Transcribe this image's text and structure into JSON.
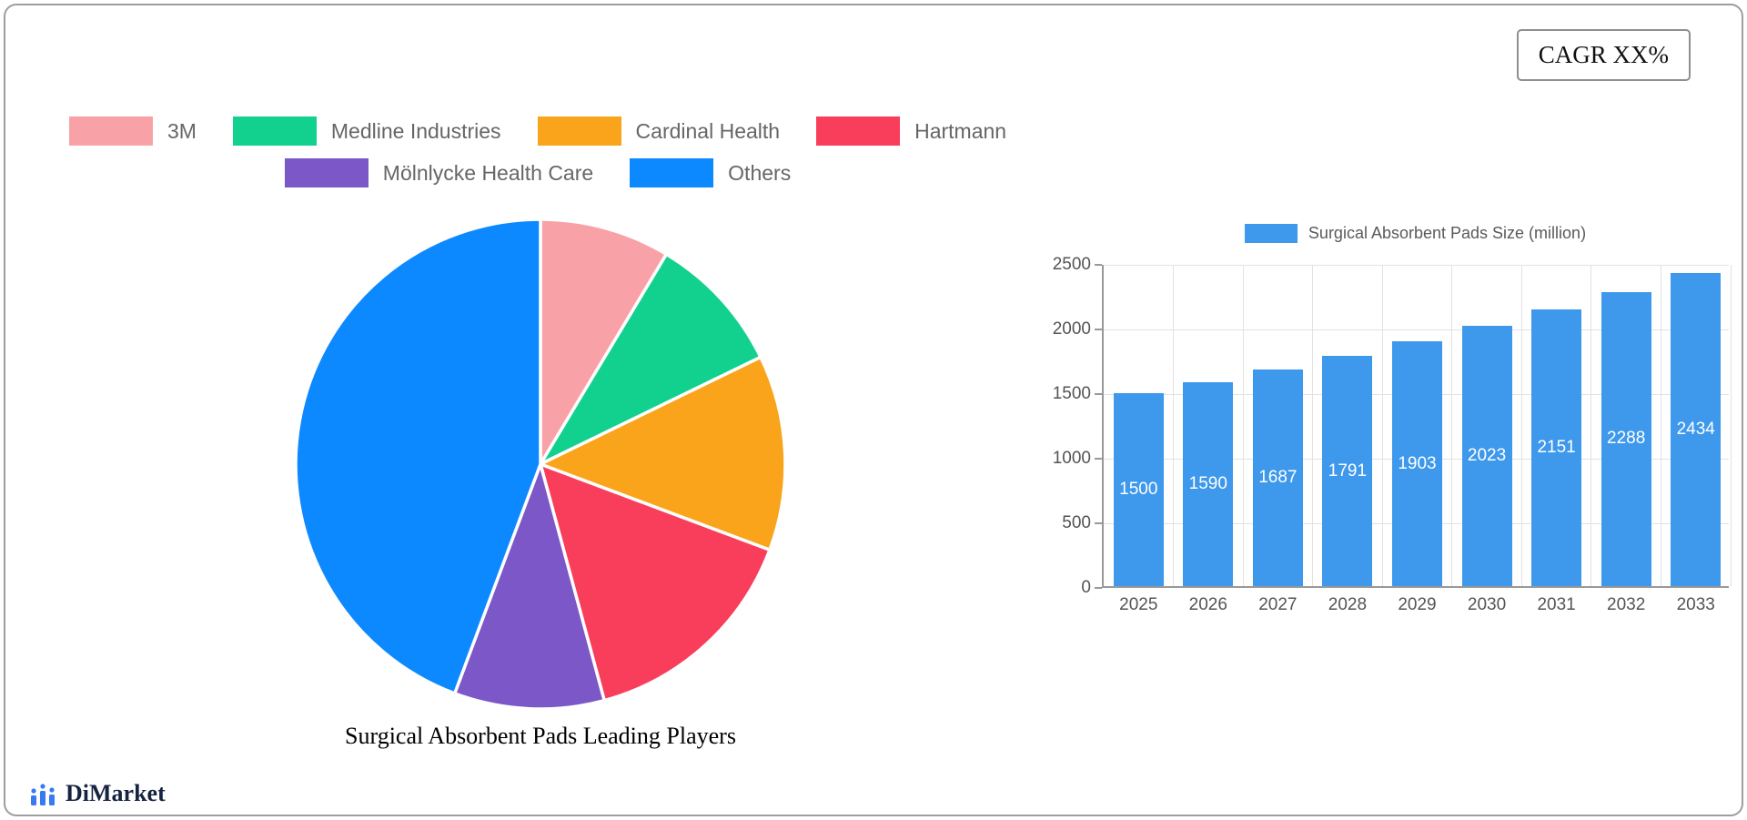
{
  "card": {
    "cagr_label": "CAGR XX%"
  },
  "logo": {
    "name": "DiMarket"
  },
  "chart_data": [
    {
      "type": "pie",
      "title": "Surgical Absorbent Pads Leading Players",
      "labels": [
        "3M",
        "Medline Industries",
        "Cardinal Health",
        "Hartmann",
        "Mölnlycke Health Care",
        "Others"
      ],
      "values": [
        8.6,
        9.2,
        12.9,
        15.1,
        9.9,
        44.3
      ],
      "colors": [
        "#F8A1A7",
        "#12D18E",
        "#FAA41B",
        "#F93E5C",
        "#7B57C8",
        "#0D89FF"
      ],
      "legend_position": "top",
      "start_angle_deg": 0,
      "direction": "clockwise",
      "legend_row_split": 4
    },
    {
      "type": "bar",
      "series_label": "Surgical Absorbent Pads Size (million)",
      "categories": [
        "2025",
        "2026",
        "2027",
        "2028",
        "2029",
        "2030",
        "2031",
        "2032",
        "2033"
      ],
      "values": [
        1500,
        1590,
        1687,
        1791,
        1903,
        2023,
        2151,
        2288,
        2434
      ],
      "ylim": [
        0,
        2500
      ],
      "y_ticks": [
        0,
        500,
        1000,
        1500,
        2000,
        2500
      ],
      "bar_color": "#3E98EB",
      "value_label_color": "#FFFFFF",
      "grid": true,
      "legend_position": "top"
    }
  ]
}
